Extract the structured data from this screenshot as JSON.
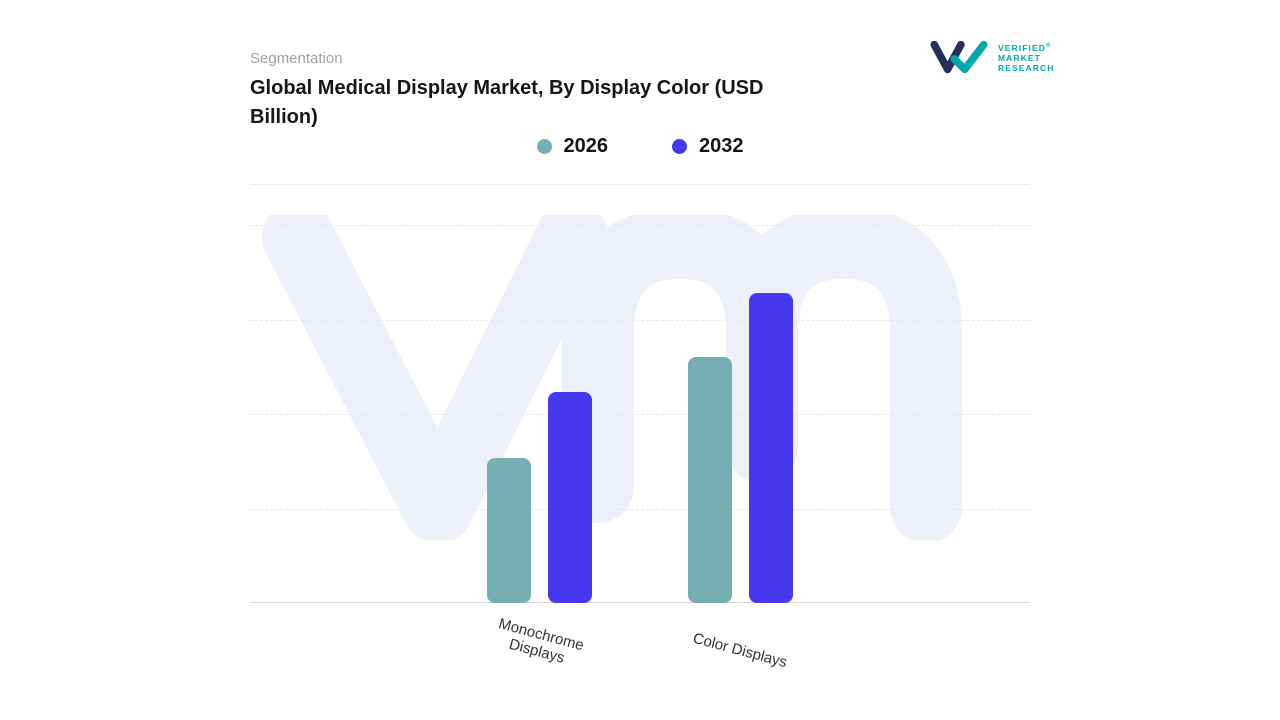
{
  "header": {
    "section_label": "Segmentation",
    "title": "Global Medical Display Market, By Display Color (USD Billion)"
  },
  "logo": {
    "brand_lines": [
      "VERIFIED",
      "MARKET",
      "RESEARCH"
    ],
    "registered_mark": "®",
    "colors": {
      "navy": "#25305a",
      "teal": "#00a7ad"
    }
  },
  "chart_data": {
    "type": "bar",
    "title": "Global Medical Display Market, By Display Color (USD Billion)",
    "categories": [
      "Monochrome Displays",
      "Color Displays"
    ],
    "series": [
      {
        "name": "2026",
        "color": "#76afb3",
        "values": [
          38.4,
          65.1
        ]
      },
      {
        "name": "2032",
        "color": "#4638ee",
        "values": [
          55.8,
          82.0
        ]
      }
    ],
    "value_axis": {
      "visible": false,
      "ylim": [
        0,
        100
      ],
      "note": "No numeric axis ticks or data labels are shown in the chart; values are estimated bar heights as percent of plot height"
    },
    "grid": "horizontal-dashed",
    "legend_position": "top-center",
    "xlabel": "",
    "ylabel": ""
  },
  "watermark": {
    "color": "#edeff9"
  }
}
